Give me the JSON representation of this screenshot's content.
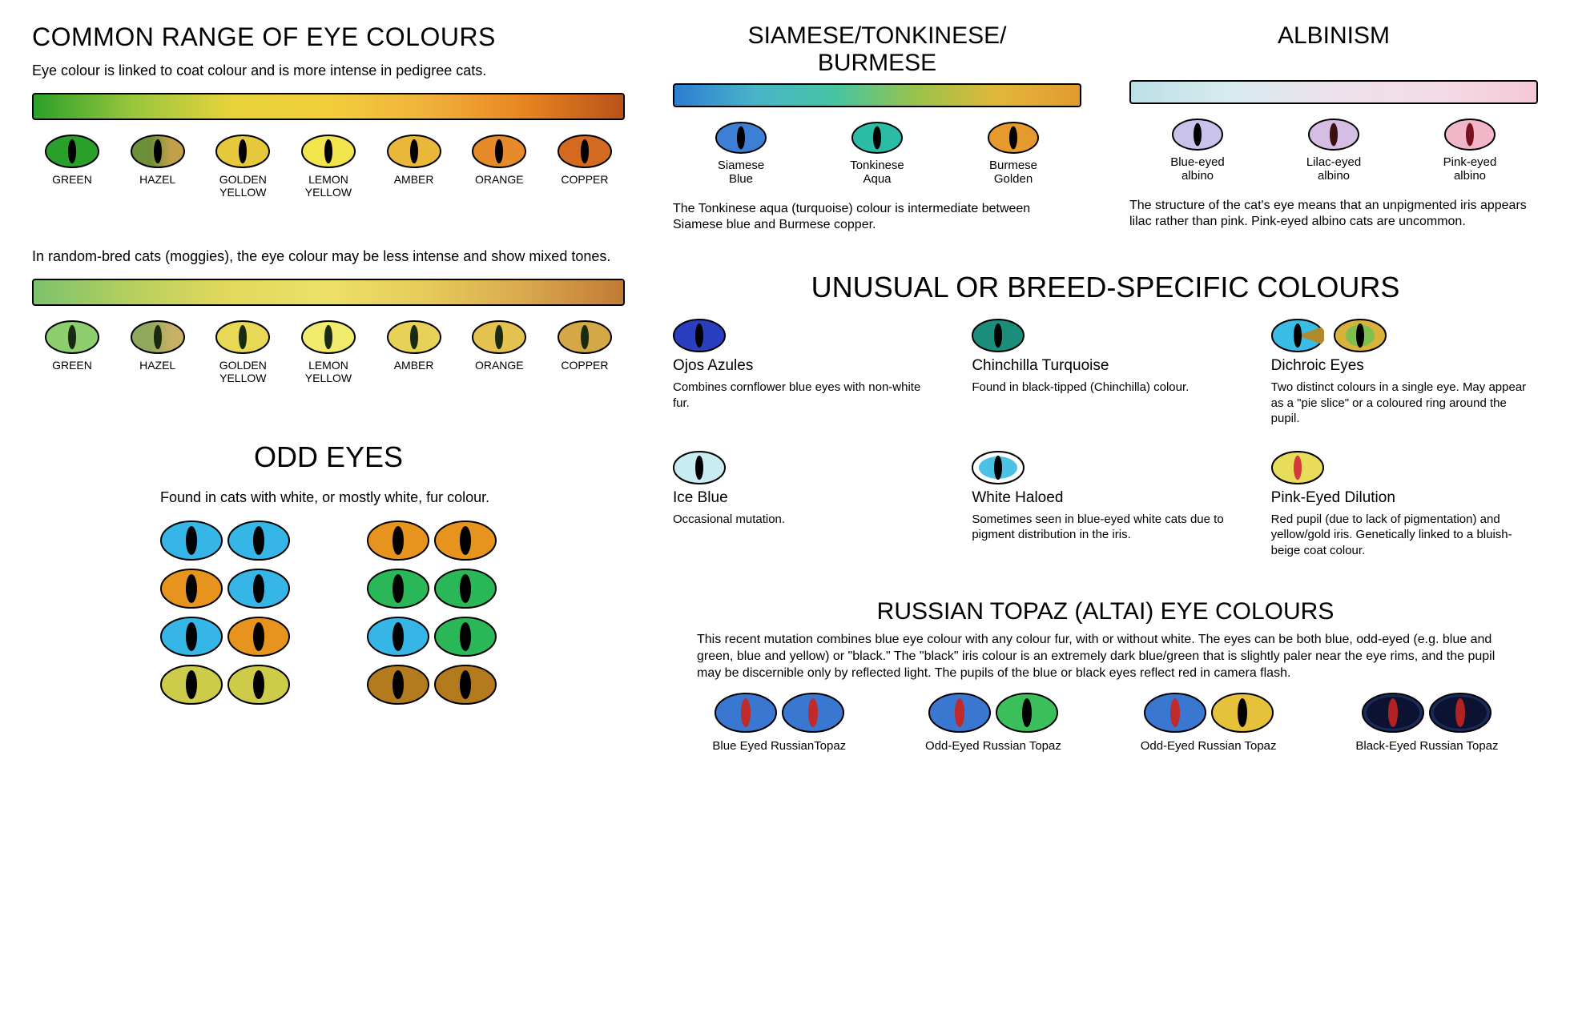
{
  "common": {
    "title": "COMMON RANGE OF EYE COLOURS",
    "intro": "Eye colour is linked to coat colour and is more intense in pedigree cats.",
    "gradient_vivid": [
      "#2aa02a",
      "#98c63c",
      "#e6d23b",
      "#f2ce3c",
      "#f0b23a",
      "#e88420",
      "#b9521a"
    ],
    "eyes_vivid": [
      {
        "label": "GREEN",
        "fill": "#2aa02a",
        "pupil": "#000"
      },
      {
        "label": "HAZEL",
        "fill": "#6d8f3a",
        "fill2": "#c2a04a",
        "pupil": "#000"
      },
      {
        "label": "GOLDEN\nYELLOW",
        "fill": "#e6c83c",
        "pupil": "#000"
      },
      {
        "label": "LEMON\nYELLOW",
        "fill": "#f2e44d",
        "pupil": "#000"
      },
      {
        "label": "AMBER",
        "fill": "#e9b83a",
        "pupil": "#000"
      },
      {
        "label": "ORANGE",
        "fill": "#e68a2a",
        "pupil": "#000"
      },
      {
        "label": "COPPER",
        "fill": "#d36a1f",
        "pupil": "#000"
      }
    ],
    "moggie_intro": "In random-bred cats (moggies), the eye colour may be less intense and show mixed tones.",
    "gradient_pale": [
      "#7cc26d",
      "#b6cf5e",
      "#e3d95d",
      "#ece069",
      "#e6cb5a",
      "#d9a84e",
      "#c27a35"
    ],
    "eyes_pale": [
      {
        "label": "GREEN",
        "fill": "#8dcf6e",
        "pupil": "#1a2a10"
      },
      {
        "label": "HAZEL",
        "fill": "#8fa95c",
        "fill2": "#c7b166",
        "pupil": "#1a2a10"
      },
      {
        "label": "GOLDEN\nYELLOW",
        "fill": "#e7d955",
        "pupil": "#1a2a10"
      },
      {
        "label": "LEMON\nYELLOW",
        "fill": "#f0ea6d",
        "pupil": "#1a2a10"
      },
      {
        "label": "AMBER",
        "fill": "#e7d158",
        "pupil": "#1a2a10"
      },
      {
        "label": "ORANGE",
        "fill": "#e3c250",
        "pupil": "#1a2a10"
      },
      {
        "label": "COPPER",
        "fill": "#d4a846",
        "pupil": "#1a2a10"
      }
    ]
  },
  "odd": {
    "title": "ODD EYES",
    "intro": "Found in cats with white, or mostly white, fur colour.",
    "colors": {
      "blue": "#35b6e6",
      "yellow": "#e3c23a",
      "orange": "#e6941e",
      "green": "#2ab757",
      "olive": "#cccb4a",
      "amber": "#b47a1e"
    },
    "rows": [
      [
        [
          "blue",
          "blue"
        ],
        [
          "orange",
          "orange"
        ]
      ],
      [
        [
          "orange",
          "blue"
        ],
        [
          "green",
          "green"
        ]
      ],
      [
        [
          "blue",
          "orange"
        ],
        [
          "blue",
          "green"
        ]
      ],
      [
        [
          "olive",
          "olive"
        ],
        [
          "amber",
          "amber"
        ]
      ]
    ]
  },
  "siamese": {
    "title": "SIAMESE/TONKINESE/\nBURMESE",
    "gradient": [
      "#2d7dd2",
      "#48b5c8",
      "#46c5a1",
      "#9cc24a",
      "#e1b73a",
      "#e39a2e"
    ],
    "eyes": [
      {
        "label": "Siamese\nBlue",
        "fill": "#3e7fd6",
        "pupil": "#000"
      },
      {
        "label": "Tonkinese\nAqua",
        "fill": "#2abca5",
        "pupil": "#000"
      },
      {
        "label": "Burmese\nGolden",
        "fill": "#e69a2e",
        "pupil": "#000"
      }
    ],
    "text": "The Tonkinese aqua (turquoise) colour is intermediate between Siamese blue and Burmese copper."
  },
  "albinism": {
    "title": "ALBINISM",
    "gradient": [
      "#bce0e6",
      "#d8ebef",
      "#ece0ea",
      "#f3dce6",
      "#f5c8d7"
    ],
    "eyes": [
      {
        "label": "Blue-eyed\nalbino",
        "fill": "#c9c3ec",
        "pupil": "#000"
      },
      {
        "label": "Lilac-eyed\nalbino",
        "fill": "#d6bde4",
        "pupil": "#3a0f0f"
      },
      {
        "label": "Pink-eyed\nalbino",
        "fill": "#f1b7c9",
        "pupil": "#7a1020"
      }
    ],
    "text": "The structure of the cat's eye means that an unpigmented iris appears lilac rather than pink. Pink-eyed albino cats are uncommon."
  },
  "unusual": {
    "title": "UNUSUAL OR BREED-SPECIFIC COLOURS",
    "items": [
      {
        "name": "Ojos Azules",
        "desc": "Combines cornflower blue eyes with non-white fur.",
        "fill": "#2a3fc0",
        "pupil": "#000"
      },
      {
        "name": "Chinchilla Turquoise",
        "desc": "Found in black-tipped (Chinchilla) colour.",
        "fill": "#1a8e7a",
        "pupil": "#000"
      },
      {
        "name": "Dichroic Eyes",
        "desc": "Two distinct colours in a single eye. May appear as a \"pie slice\" or a coloured ring around the pupil.",
        "dichroic": true,
        "eyeA": {
          "fill": "#39bde6",
          "slice": "#b08a2a",
          "pupil": "#000"
        },
        "eyeB": {
          "fill": "#d8b23a",
          "ring": "#7fbf4e",
          "pupil": "#000"
        }
      },
      {
        "name": "Ice Blue",
        "desc": "Occasional mutation.",
        "fill": "#c9ecf3",
        "pupil": "#000"
      },
      {
        "name": "White Haloed",
        "desc": "Sometimes seen in blue-eyed white cats due to pigment distribution in the iris.",
        "fill": "#4bc1e6",
        "halo": "#ffffff",
        "pupil": "#000"
      },
      {
        "name": "Pink-Eyed Dilution",
        "desc": "Red pupil (due to lack of pigmentation) and yellow/gold iris.  Genetically linked to a bluish-beige coat colour.",
        "fill": "#e8dd5a",
        "pupil": "#d53a3a"
      }
    ]
  },
  "topaz": {
    "title": "RUSSIAN TOPAZ (ALTAI) EYE COLOURS",
    "text": "This recent mutation combines blue eye colour with any colour fur, with or without white.  The eyes can be both blue, odd-eyed (e.g. blue and green, blue and yellow) or \"black.\"  The \"black\" iris colour is an extremely dark blue/green that is slightly paler near the eye rims, and the pupil may be discernible only by reflected light.  The pupils of the blue or black eyes reflect red in camera flash.",
    "items": [
      {
        "label": "Blue Eyed RussianTopaz",
        "eyes": [
          {
            "fill": "#3a77d0",
            "pupil": "#c12a2a"
          },
          {
            "fill": "#3a77d0",
            "pupil": "#c12a2a"
          }
        ]
      },
      {
        "label": "Odd-Eyed Russian Topaz",
        "eyes": [
          {
            "fill": "#3a77d0",
            "pupil": "#c12a2a"
          },
          {
            "fill": "#3bbf5a",
            "pupil": "#000"
          }
        ]
      },
      {
        "label": "Odd-Eyed Russian Topaz",
        "eyes": [
          {
            "fill": "#3a77d0",
            "pupil": "#c12a2a"
          },
          {
            "fill": "#e6c23a",
            "pupil": "#000"
          }
        ]
      },
      {
        "label": "Black-Eyed Russian Topaz",
        "eyes": [
          {
            "fill": "#0c1330",
            "pupil": "#b22222",
            "rim": "#1a2a5a"
          },
          {
            "fill": "#0c1330",
            "pupil": "#b22222",
            "rim": "#1a2a5a"
          }
        ]
      }
    ]
  }
}
